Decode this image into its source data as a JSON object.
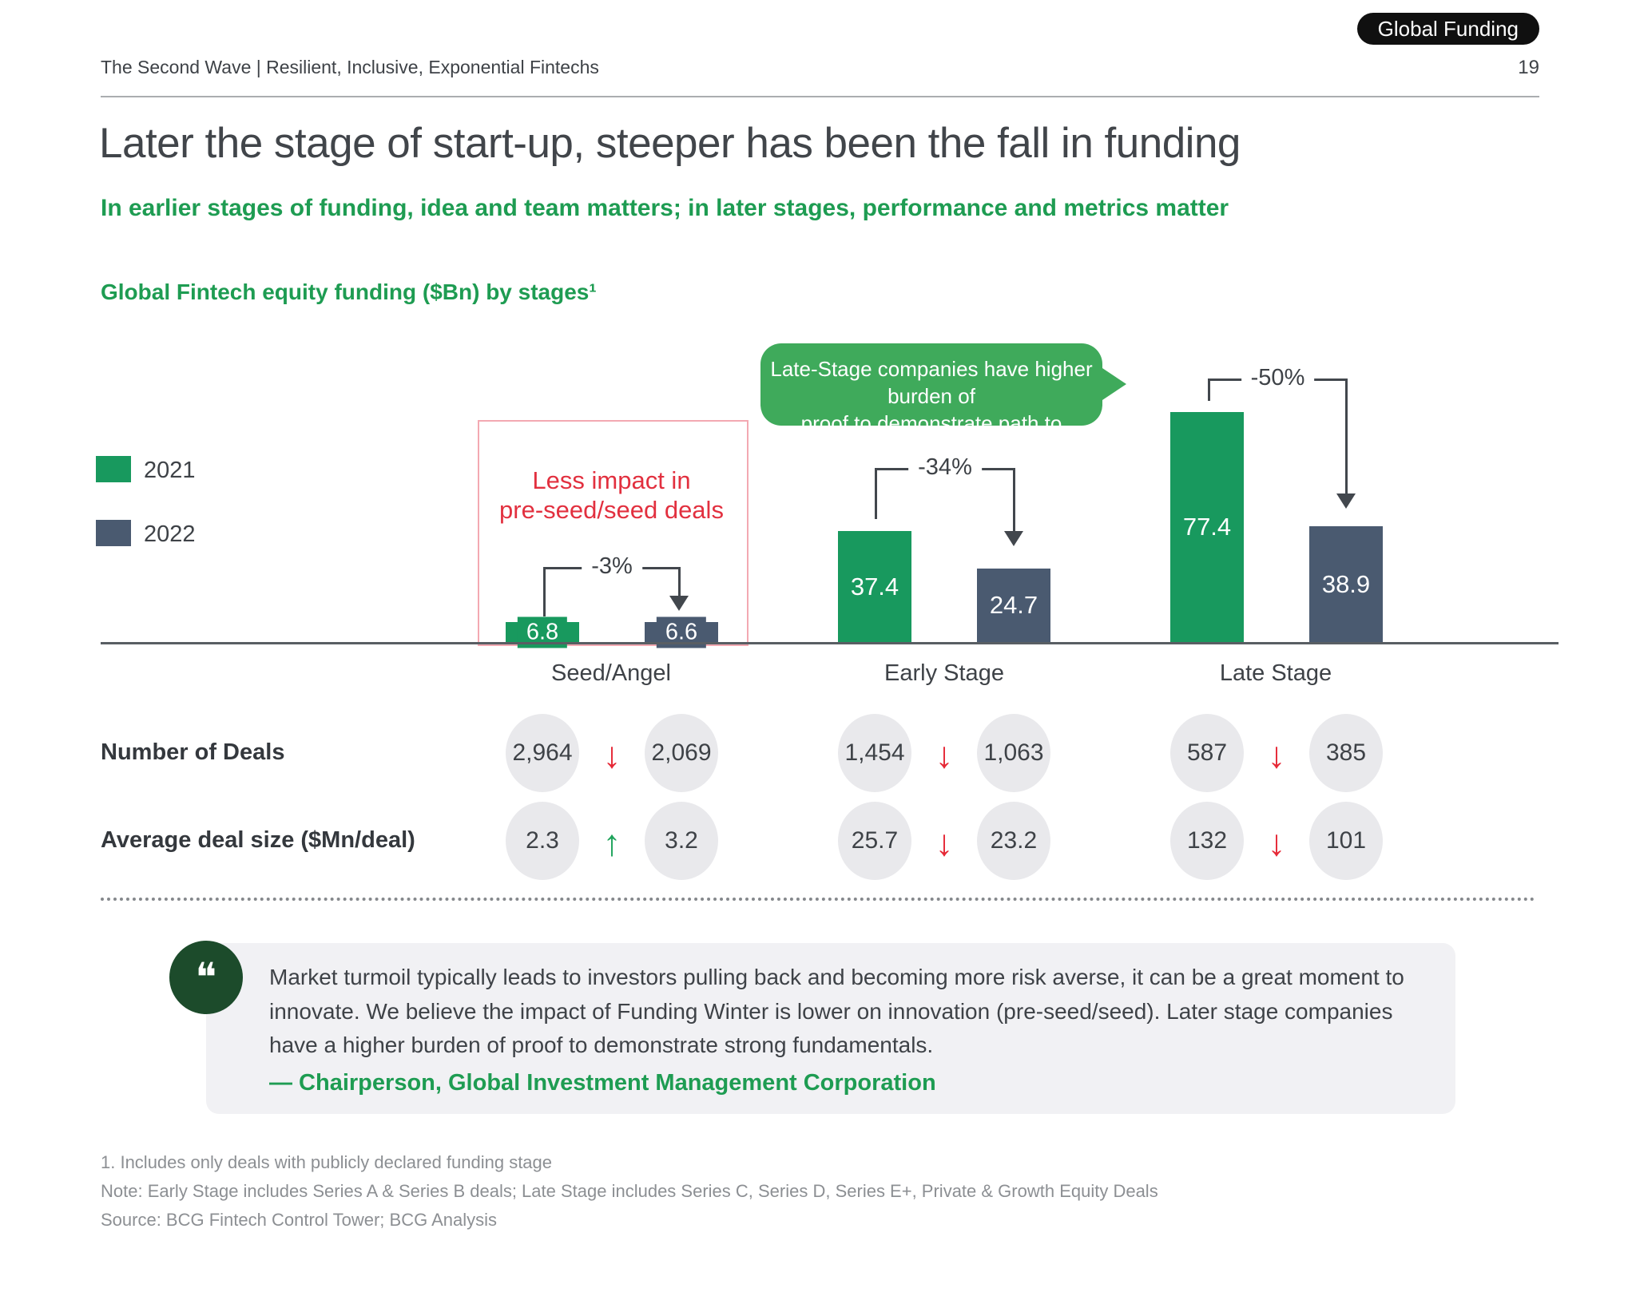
{
  "page": {
    "badge": "Global Funding",
    "header": "The Second Wave | Resilient, Inclusive, Exponential Fintechs",
    "page_number": "19",
    "title": "Later the stage of start-up, steeper has been the fall in funding",
    "subtitle": "In earlier stages of funding, idea and team matters; in later stages, performance and metrics matter"
  },
  "chart_data": {
    "type": "bar",
    "title": "Global Fintech equity funding ($Bn) by stages¹",
    "categories": [
      "Seed/Angel",
      "Early Stage",
      "Late Stage"
    ],
    "series": [
      {
        "name": "2021",
        "color": "#18995E",
        "values": [
          6.8,
          37.4,
          77.4
        ]
      },
      {
        "name": "2022",
        "color": "#4A5A70",
        "values": [
          6.6,
          24.7,
          38.9
        ]
      }
    ],
    "change_labels": [
      "-3%",
      "-34%",
      "-50%"
    ],
    "ylim": [
      0,
      85
    ],
    "grid": false,
    "legend_position": "left",
    "annotations": {
      "red_box_lines": [
        "Less impact in",
        "pre-seed/seed deals"
      ],
      "callout_lines": [
        "Late-Stage companies have higher burden of",
        "proof to demonstrate path to profitability"
      ]
    }
  },
  "stats": {
    "rows": [
      {
        "label": "Number of Deals",
        "cells": [
          {
            "v2021": "2,964",
            "arrow": "↓",
            "dir": "down",
            "v2022": "2,069"
          },
          {
            "v2021": "1,454",
            "arrow": "↓",
            "dir": "down",
            "v2022": "1,063"
          },
          {
            "v2021": "587",
            "arrow": "↓",
            "dir": "down",
            "v2022": "385"
          }
        ]
      },
      {
        "label": "Average deal size ($Mn/deal)",
        "cells": [
          {
            "v2021": "2.3",
            "arrow": "↑",
            "dir": "up",
            "v2022": "3.2"
          },
          {
            "v2021": "25.7",
            "arrow": "↓",
            "dir": "down",
            "v2022": "23.2"
          },
          {
            "v2021": "132",
            "arrow": "↓",
            "dir": "down",
            "v2022": "101"
          }
        ]
      }
    ]
  },
  "quote": {
    "mark": "❝",
    "text": "Market turmoil typically leads to investors pulling back and becoming more risk averse, it can be a great moment to innovate. We believe the impact of Funding Winter is lower on innovation (pre-seed/seed). Later stage companies have a higher burden of proof to demonstrate strong fundamentals.",
    "attribution": "— Chairperson, Global Investment Management Corporation"
  },
  "footnotes": [
    "1. Includes only deals with publicly declared funding stage",
    "Note: Early Stage includes Series A & Series B deals; Late Stage includes Series C, Series D, Series E+, Private & Growth Equity Deals",
    "Source: BCG Fintech Control Tower; BCG Analysis"
  ],
  "colors": {
    "green_2021": "#18995E",
    "slate_2022": "#4A5A70",
    "callout_green": "#3FAA5B",
    "accent_text_green": "#1E9C52",
    "quote_circle_green": "#1C4B2B",
    "negative_red": "#E62937",
    "annotation_red": "#E2303F",
    "red_box_border": "#F3A9B2",
    "circle_gray": "#E9E9EC",
    "badge_black": "#101010"
  }
}
